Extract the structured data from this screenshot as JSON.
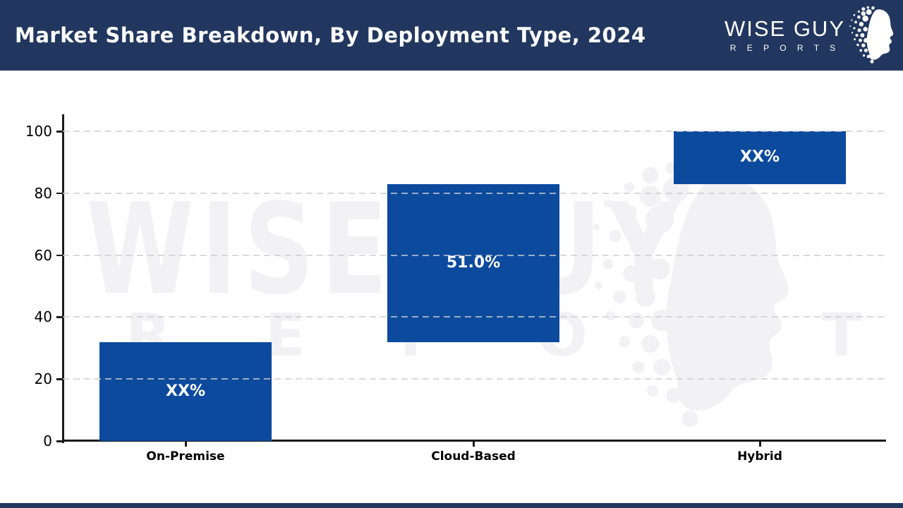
{
  "header": {
    "title": "Market Share Breakdown, By Deployment Type, 2024",
    "logo": {
      "line1": "WISE GUY",
      "line2": "R E P O R T S"
    }
  },
  "watermark": {
    "line1": "WISE GUY",
    "line2": "R E P O R T S"
  },
  "chart_data": {
    "type": "bar",
    "subtype": "waterfall",
    "title": "Market Share Breakdown, By Deployment Type, 2024",
    "categories": [
      "On-Premise",
      "Cloud-Based",
      "Hybrid"
    ],
    "segments": [
      {
        "category": "On-Premise",
        "start": 0,
        "end": 32,
        "value": 32,
        "label": "XX%"
      },
      {
        "category": "Cloud-Based",
        "start": 32,
        "end": 83,
        "value": 51.0,
        "label": "51.0%"
      },
      {
        "category": "Hybrid",
        "start": 83,
        "end": 100,
        "value": 17,
        "label": "XX%"
      }
    ],
    "xlabel": "",
    "ylabel": "",
    "ylim": [
      0,
      100
    ],
    "yticks": [
      0,
      20,
      40,
      60,
      80,
      100
    ],
    "grid": "horizontal-dashed",
    "grid_above_bars": true,
    "legend": "none",
    "bar_color": "#0c4a9e",
    "bar_label_color": "#ffffff"
  },
  "colors": {
    "header_bg": "#22375f",
    "footer_bg": "#22375f",
    "title_text": "#ffffff",
    "axis": "#1a1a1a",
    "tick_text": "#000000",
    "gridline": "#d9d9d9",
    "watermark": "#f2f2f5"
  }
}
